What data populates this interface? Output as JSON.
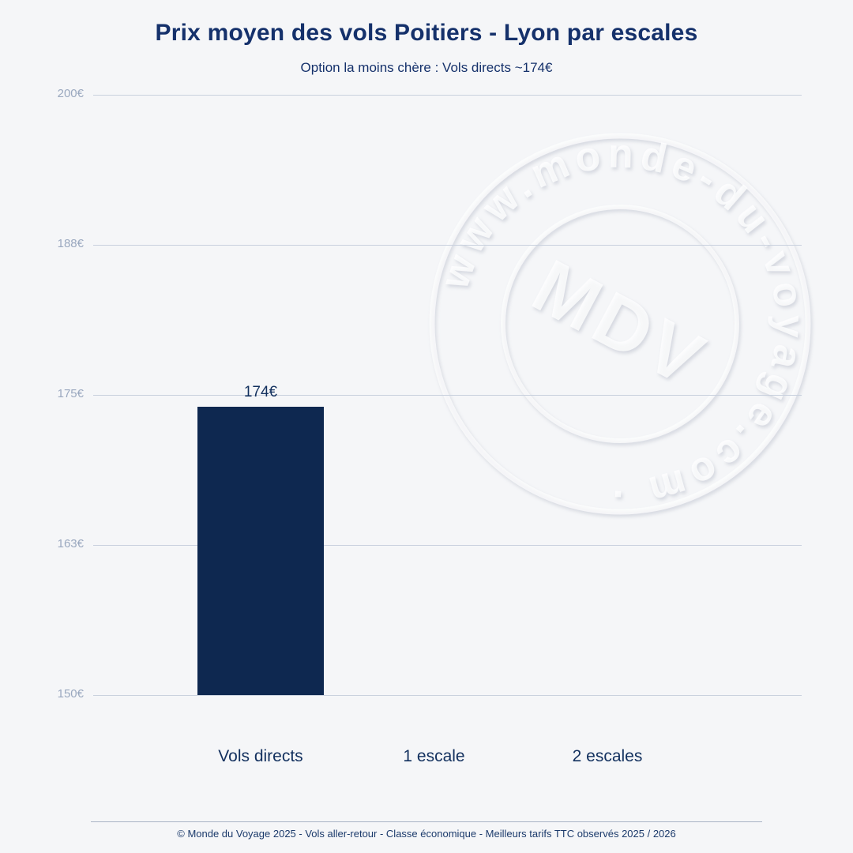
{
  "chart_data": {
    "type": "bar",
    "title": "Prix moyen des vols Poitiers - Lyon par escales",
    "subtitle": "Option la moins chère : Vols directs ~174€",
    "categories": [
      "Vols directs",
      "1 escale",
      "2 escales"
    ],
    "values": [
      174,
      null,
      null
    ],
    "value_labels": [
      "174€",
      null,
      null
    ],
    "ylim": [
      150,
      200
    ],
    "yticks": [
      {
        "value": 200,
        "label": "200€"
      },
      {
        "value": 187.5,
        "label": "188€"
      },
      {
        "value": 175,
        "label": "175€"
      },
      {
        "value": 162.5,
        "label": "163€"
      },
      {
        "value": 150,
        "label": "150€"
      }
    ],
    "grid": true,
    "legend": false,
    "bar_color": "#0e2850",
    "currency": "EUR"
  },
  "watermark": {
    "ring_text": "www.monde-du-voyage.com ·",
    "center_text": "MDV"
  },
  "footer": {
    "text": "© Monde du Voyage 2025 - Vols aller-retour - Classe économique - Meilleurs tarifs TTC observés 2025 / 2026"
  }
}
